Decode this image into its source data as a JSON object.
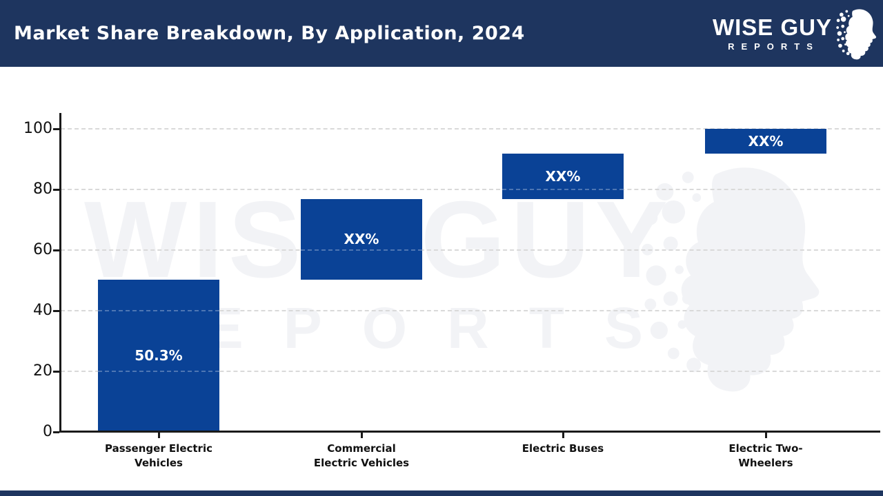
{
  "header": {
    "title": "Market Share Breakdown, By Application, 2024",
    "logo": {
      "line1": "WISE GUY",
      "line2": "REPORTS"
    }
  },
  "watermark": {
    "line1": "WISE GUY",
    "line2": "REPORTS"
  },
  "colors": {
    "header_bg": "#1e355f",
    "footer_bg": "#1e355f",
    "bar": "#0a4296",
    "gridline": "#d9d9d9",
    "axis": "#1a1a1a",
    "bar_label_text": "#ffffff",
    "watermark": "#f2f3f6"
  },
  "chart_data": {
    "type": "bar",
    "subtype": "waterfall",
    "title": "Market Share Breakdown, By Application, 2024",
    "categories": [
      "Passenger Electric\nVehicles",
      "Commercial\nElectric Vehicles",
      "Electric Buses",
      "Electric Two-\nWheelers"
    ],
    "segments": [
      {
        "category": "Passenger Electric Vehicles",
        "start": 0,
        "end": 50.3,
        "label": "50.3%"
      },
      {
        "category": "Commercial Electric Vehicles",
        "start": 50.3,
        "end": 76.8,
        "label": "XX%"
      },
      {
        "category": "Electric Buses",
        "start": 76.8,
        "end": 91.8,
        "label": "XX%"
      },
      {
        "category": "Electric Two-Wheelers",
        "start": 91.8,
        "end": 100,
        "label": "XX%"
      }
    ],
    "yticks": [
      0,
      20,
      40,
      60,
      80,
      100
    ],
    "ylim": [
      0,
      105
    ],
    "grid": "dashed-horizontal",
    "legend": "none",
    "ylabel": "",
    "xlabel": ""
  }
}
